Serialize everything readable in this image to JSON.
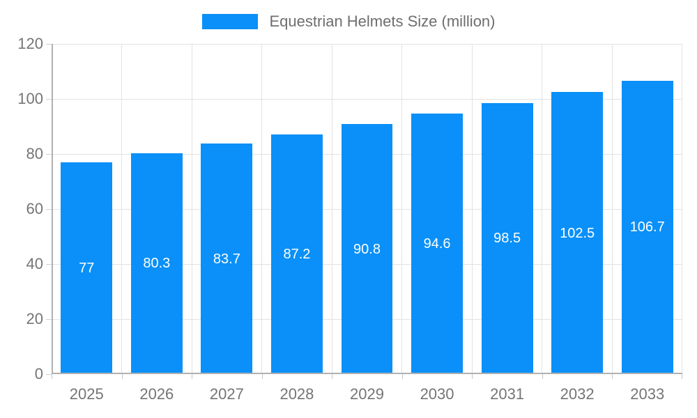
{
  "chart_data": {
    "type": "bar",
    "title": "Equestrian Helmets Size (million)",
    "categories": [
      "2025",
      "2026",
      "2027",
      "2028",
      "2029",
      "2030",
      "2031",
      "2032",
      "2033"
    ],
    "values": [
      77,
      80.3,
      83.7,
      87.2,
      90.8,
      94.6,
      98.5,
      102.5,
      106.7
    ],
    "value_labels": [
      "77",
      "80.3",
      "83.7",
      "87.2",
      "90.8",
      "94.6",
      "98.5",
      "102.5",
      "106.7"
    ],
    "xlabel": "",
    "ylabel": "",
    "ylim": [
      0,
      120
    ],
    "yticks": [
      0,
      20,
      40,
      60,
      80,
      100,
      120
    ],
    "grid": true,
    "legend_position": "top-center",
    "colors": {
      "bar": "#0a90f8",
      "value_label": "#ffffff",
      "axis_text": "#757575",
      "legend_text": "#6e6e6e",
      "gridline": "#e2e2e2",
      "axis_line": "#b0b0b0"
    }
  }
}
